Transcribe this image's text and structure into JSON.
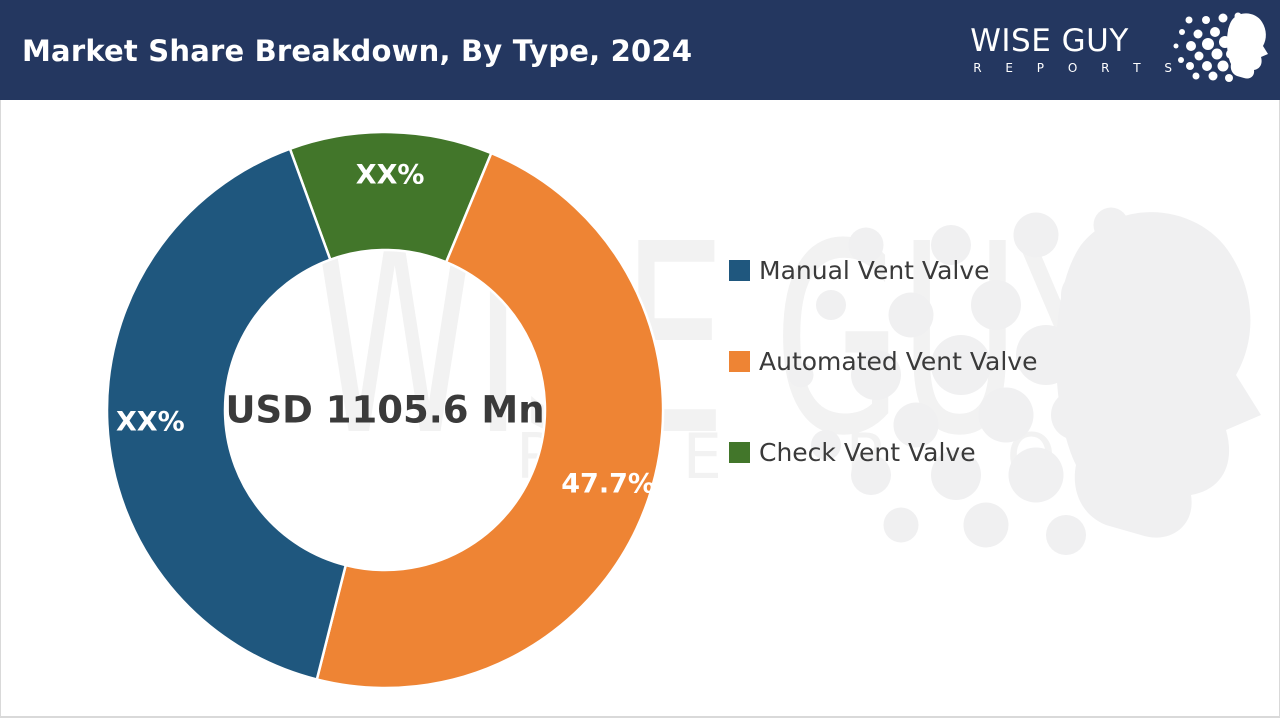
{
  "header": {
    "title": "Market Share Breakdown, By Type, 2024",
    "logo": {
      "line1": "WISE GUY",
      "line2": "R E P O R T S"
    }
  },
  "watermark": {
    "line1": "WISE GUY",
    "line2": "R E P O R T S"
  },
  "chart_data": {
    "type": "pie",
    "subtype": "donut",
    "title": "Market Share Breakdown, By Type, 2024",
    "center_label": "USD 1105.6 Mn",
    "legend_position": "right",
    "start_angle_deg": -20,
    "draw_order": [
      2,
      1,
      0
    ],
    "segments": [
      {
        "name": "Manual Vent Valve",
        "slice_label": "XX%",
        "value_pct": 40.5,
        "color": "#1F577E"
      },
      {
        "name": "Automated Vent Valve",
        "slice_label": "47.7%",
        "value_pct": 47.7,
        "color": "#EE8434"
      },
      {
        "name": "Check Vent Valve",
        "slice_label": "XX%",
        "value_pct": 11.8,
        "color": "#42762A"
      }
    ]
  }
}
